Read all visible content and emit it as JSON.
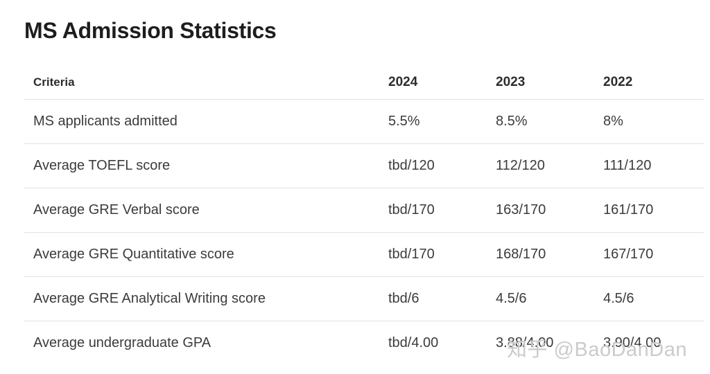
{
  "chart_data": {
    "type": "table",
    "title": "MS Admission Statistics",
    "columns": [
      "Criteria",
      "2024",
      "2023",
      "2022"
    ],
    "rows": [
      {
        "label": "MS applicants admitted",
        "values": [
          "5.5%",
          "8.5%",
          "8%"
        ]
      },
      {
        "label": "Average TOEFL score",
        "values": [
          "tbd/120",
          "112/120",
          "111/120"
        ]
      },
      {
        "label": "Average GRE Verbal score",
        "values": [
          "tbd/170",
          "163/170",
          "161/170"
        ]
      },
      {
        "label": "Average GRE Quantitative score",
        "values": [
          "tbd/170",
          "168/170",
          "167/170"
        ]
      },
      {
        "label": "Average GRE Analytical Writing score",
        "values": [
          "tbd/6",
          "4.5/6",
          "4.5/6"
        ]
      },
      {
        "label": "Average undergraduate GPA",
        "values": [
          "tbd/4.00",
          "3.88/4.00",
          "3.90/4.00"
        ]
      }
    ],
    "legend": "none",
    "grid": "horizontal-dividers-only"
  },
  "watermark": {
    "text": "知乎 @BaoDanDan"
  },
  "colors": {
    "background": "#ffffff",
    "title_text": "#1d1d1d",
    "header_text": "#2c2c2c",
    "body_text": "#3b3b3b",
    "divider": "#e1e1e1",
    "watermark": "#c7c7c7"
  }
}
